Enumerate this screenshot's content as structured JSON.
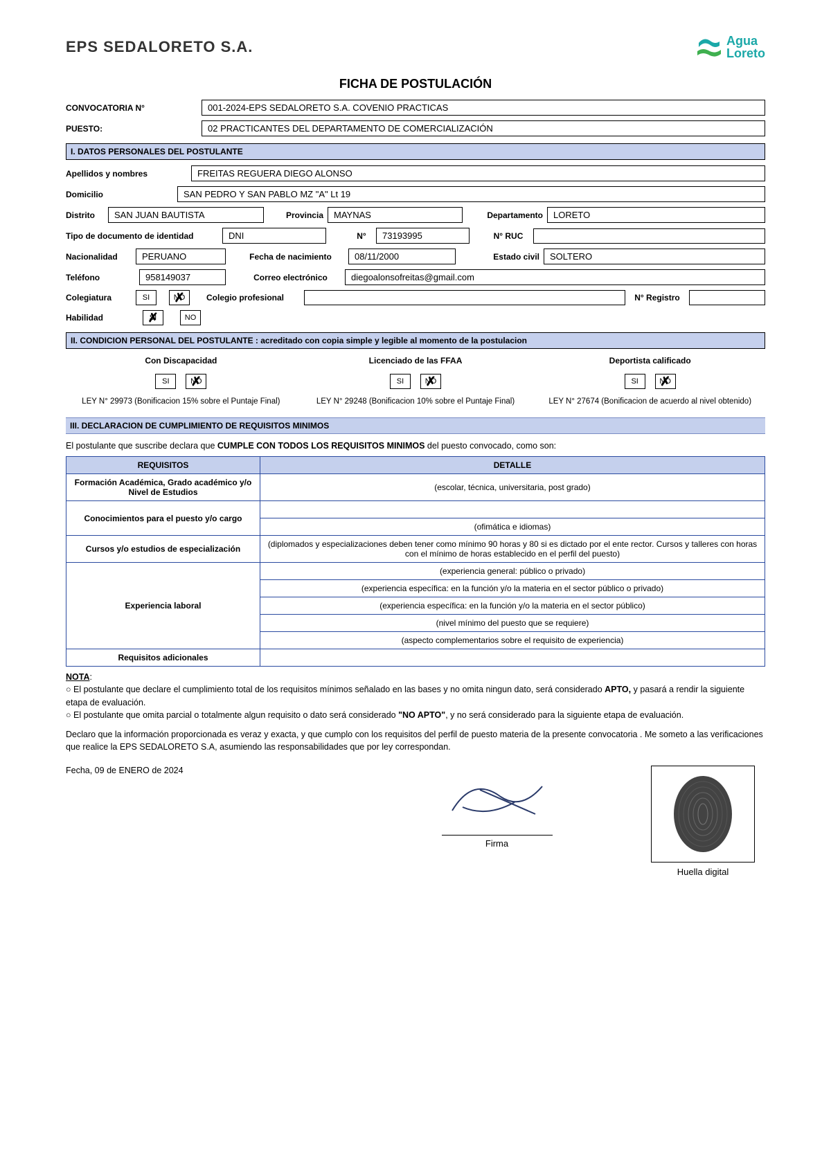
{
  "company": "EPS SEDALORETO S.A.",
  "logo": {
    "line1": "Agua",
    "line2": "Loreto",
    "color": "#1ba8a8",
    "accent": "#3fb04f"
  },
  "title": "FICHA DE POSTULACIÓN",
  "convocatoria": {
    "label": "CONVOCATORIA N°",
    "value": "001-2024-EPS SEDALORETO S.A. COVENIO PRACTICAS"
  },
  "puesto": {
    "label": "PUESTO:",
    "value": "02 PRACTICANTES DEL DEPARTAMENTO DE COMERCIALIZACIÓN"
  },
  "sec1": {
    "title": "I. DATOS PERSONALES DEL POSTULANTE"
  },
  "nombres": {
    "label": "Apellidos y nombres",
    "value": "FREITAS REGUERA DIEGO ALONSO"
  },
  "domicilio": {
    "label": "Domicilio",
    "value": "SAN PEDRO Y SAN PABLO MZ \"A\" Lt 19"
  },
  "distrito": {
    "label": "Distrito",
    "value": "SAN JUAN BAUTISTA"
  },
  "provincia": {
    "label": "Provincia",
    "value": "MAYNAS"
  },
  "departamento": {
    "label": "Departamento",
    "value": "LORETO"
  },
  "tipodoc": {
    "label": "Tipo de documento de identidad",
    "value": "DNI"
  },
  "numdoc": {
    "label": "N°",
    "value": "73193995"
  },
  "ruc": {
    "label": "N° RUC",
    "value": ""
  },
  "nacionalidad": {
    "label": "Nacionalidad",
    "value": "PERUANO"
  },
  "fechanac": {
    "label": "Fecha de nacimiento",
    "value": "08/11/2000"
  },
  "estadocivil": {
    "label": "Estado civil",
    "value": "SOLTERO"
  },
  "telefono": {
    "label": "Teléfono",
    "value": "958149037"
  },
  "correo": {
    "label": "Correo electrónico",
    "value": "diegoalonsofreitas@gmail.com"
  },
  "colegiatura": {
    "label": "Colegiatura",
    "si": "SI",
    "no": "NO",
    "selected": "NO"
  },
  "colegioprof": {
    "label": "Colegio profesional",
    "value": ""
  },
  "nregistro": {
    "label": "N° Registro",
    "value": ""
  },
  "habilidad": {
    "label": "Habilidad",
    "si": "SI",
    "no": "NO",
    "selected": "SI"
  },
  "sec2": {
    "title": "II. CONDICION PERSONAL DEL POSTULANTE : acreditado con copia simple y legible al momento de la postulacion"
  },
  "cond": {
    "discapacidad": {
      "title": "Con Discapacidad",
      "si": "SI",
      "no": "NO",
      "selected": "NO",
      "law": "LEY N° 29973 (Bonificacion 15% sobre el Puntaje Final)"
    },
    "ffaa": {
      "title": "Licenciado de las FFAA",
      "si": "SI",
      "no": "NO",
      "selected": "NO",
      "law": "LEY N° 29248 (Bonificacion 10% sobre el Puntaje Final)"
    },
    "deportista": {
      "title": "Deportista calificado",
      "si": "SI",
      "no": "NO",
      "selected": "NO",
      "law": "LEY N° 27674 (Bonificacion de acuerdo al nivel obtenido)"
    }
  },
  "sec3": {
    "title": "III. DECLARACION DE CUMPLIMIENTO DE REQUISITOS MINIMOS"
  },
  "decl_intro_pre": "El postulante que suscribe declara que ",
  "decl_intro_bold": "CUMPLE CON TODOS LOS REQUISITOS MINIMOS",
  "decl_intro_post": " del puesto convocado, como son:",
  "reqtable": {
    "headers": {
      "c1": "REQUISITOS",
      "c2": "DETALLE"
    },
    "rows": [
      {
        "label": "Formación Académica, Grado académico y/o Nivel de Estudios",
        "details": [
          "(escolar, técnica, universitaria, post grado)"
        ]
      },
      {
        "label": "Conocimientos para el puesto y/o cargo",
        "details": [
          "",
          "(ofimática e idiomas)"
        ]
      },
      {
        "label": "Cursos y/o estudios de especialización",
        "details": [
          "(diplomados y especializaciones deben tener como mínimo 90 horas y 80 si es dictado por el ente rector. Cursos y talleres con horas con el mínimo de horas establecido en el perfil del puesto)"
        ]
      },
      {
        "label": "Experiencia laboral",
        "details": [
          "(experiencia general: público o privado)",
          "(experiencia específica: en la función y/o la materia en el sector público o privado)",
          "(experiencia específica: en la función y/o la materia  en el sector público)",
          "(nivel mínimo del puesto que se requiere)",
          "(aspecto complementarios sobre el requisito de experiencia)"
        ]
      },
      {
        "label": "Requisitos adicionales",
        "details": [
          ""
        ]
      }
    ]
  },
  "nota": {
    "title": "NOTA",
    "b1a": "○ El postulante que declare el cumplimiento total de los requisitos mínimos señalado en las bases y no omita ningun dato, será considerado ",
    "b1b": "APTO,",
    "b1c": " y pasará a rendir la siguiente etapa de evaluación.",
    "b2a": "○ El postulante que omita parcial o totalmente algun requisito o dato será considerado ",
    "b2b": "\"NO APTO\"",
    "b2c": ", y no será considerado para la siguiente etapa de evaluación."
  },
  "declaration": "Declaro que la información proporcionada es veraz y exacta, y que cumplo con los requisitos del perfil de puesto materia de la presente convocatoria . Me someto a las verificaciones que realice la EPS SEDALORETO S.A, asumiendo las responsabilidades que por ley correspondan.",
  "fecha": "Fecha, 09 de ENERO de 2024",
  "firma_label": "Firma",
  "huella_label": "Huella digital"
}
